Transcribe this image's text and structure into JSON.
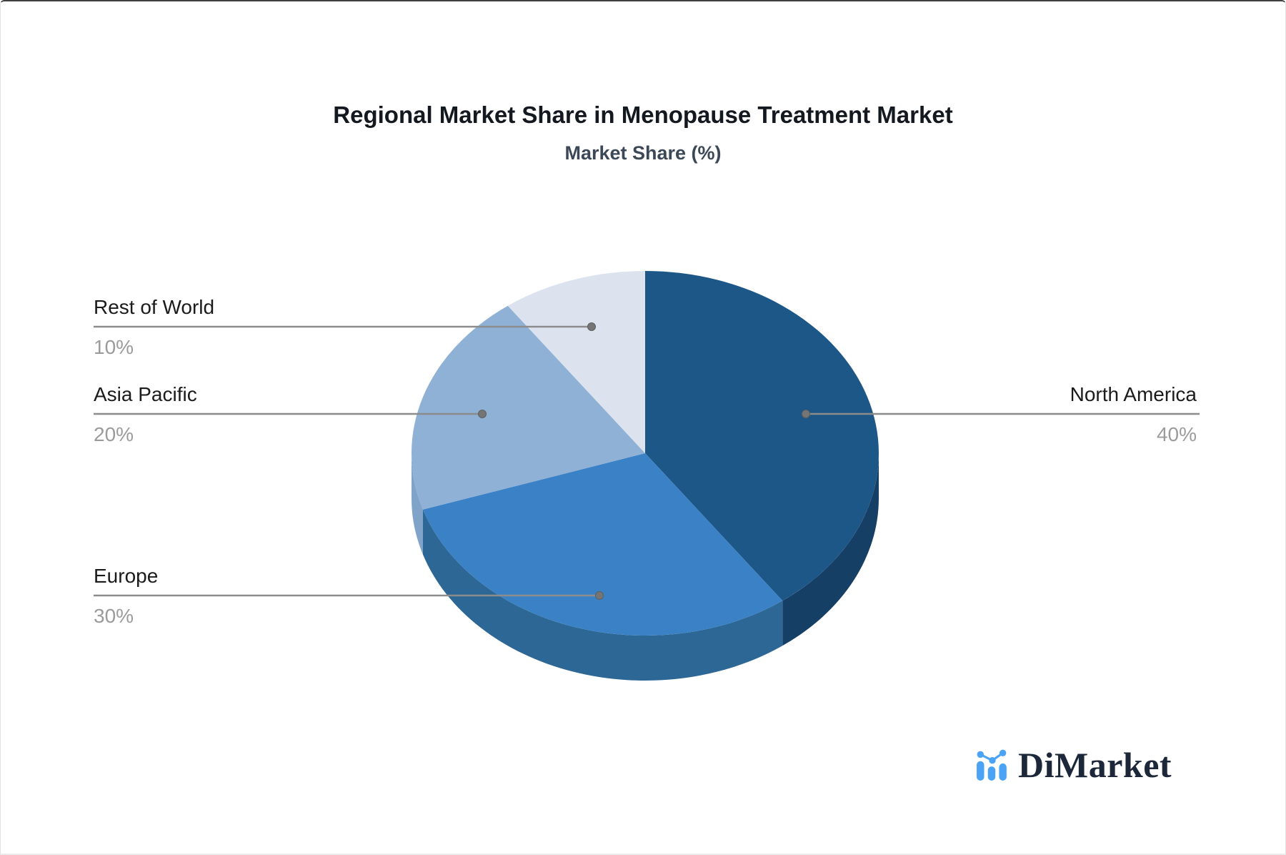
{
  "title": "Regional Market Share in Menopause Treatment Market",
  "subtitle": "Market Share (%)",
  "logo": {
    "text": "DiMarket",
    "icon": "bar-line-chart-icon"
  },
  "colors": {
    "slices": [
      "#1d5787",
      "#3a82c5",
      "#8fb1d6",
      "#dce3ee"
    ],
    "slice_sides": [
      "#163f66",
      "#2d6795",
      "#7fa3c9",
      "#c3cedd"
    ],
    "label_line": "#8c8c8c",
    "label_dot": "#757575",
    "name_text": "#1b1b1b",
    "value_text": "#9b9b9b",
    "title_text": "#14181f",
    "subtitle_text": "#3c4857",
    "logo_text": "#1c2839",
    "logo_accent": "#4ba3f5"
  },
  "chart_data": {
    "type": "pie",
    "style": "3d",
    "title": "Regional Market Share in Menopause Treatment Market",
    "subtitle": "Market Share (%)",
    "unit": "%",
    "start_angle_deg": 0,
    "direction": "clockwise",
    "categories": [
      "North America",
      "Europe",
      "Asia Pacific",
      "Rest of World"
    ],
    "values": [
      40,
      30,
      20,
      10
    ],
    "labels": [
      {
        "name": "North America",
        "value_text": "40%",
        "side": "right"
      },
      {
        "name": "Europe",
        "value_text": "30%",
        "side": "left"
      },
      {
        "name": "Asia Pacific",
        "value_text": "20%",
        "side": "left"
      },
      {
        "name": "Rest of World",
        "value_text": "10%",
        "side": "left"
      }
    ],
    "legend": "none",
    "grid": "off"
  }
}
